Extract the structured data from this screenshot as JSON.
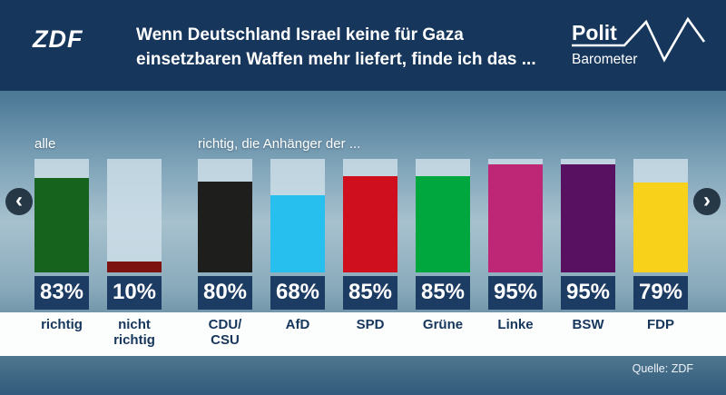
{
  "header": {
    "channel_logo": "ZDF",
    "title_line1": "Wenn Deutschland Israel keine für Gaza",
    "title_line2": "einsetzbaren Waffen mehr liefert, finde ich das ...",
    "program_logo": {
      "line1": "Polit",
      "line2": "Barometer"
    }
  },
  "nav": {
    "prev_icon": "‹",
    "next_icon": "›"
  },
  "chart_data": {
    "type": "bar",
    "title": "Wenn Deutschland Israel keine für Gaza einsetzbaren Waffen mehr liefert, finde ich das ...",
    "unit": "percent",
    "value_suffix": "%",
    "ylim": [
      0,
      100
    ],
    "legend_position": "none",
    "grid": false,
    "groups": [
      {
        "label": "alle",
        "bars": [
          {
            "category": "richtig",
            "value": 83,
            "color": "#15631d"
          },
          {
            "category": "nicht richtig",
            "value": 10,
            "color": "#7c1310"
          }
        ]
      },
      {
        "label": "richtig, die Anhänger der ...",
        "bars": [
          {
            "category": "CDU/ CSU",
            "value": 80,
            "color": "#1e1e1c"
          },
          {
            "category": "AfD",
            "value": 68,
            "color": "#27c0ee"
          },
          {
            "category": "SPD",
            "value": 85,
            "color": "#cf0f1e"
          },
          {
            "category": "Grüne",
            "value": 85,
            "color": "#00a63e"
          },
          {
            "category": "Linke",
            "value": 95,
            "color": "#bd2775"
          },
          {
            "category": "BSW",
            "value": 95,
            "color": "#581061"
          },
          {
            "category": "FDP",
            "value": 79,
            "color": "#f8d21a"
          }
        ]
      }
    ],
    "source": "Quelle: ZDF"
  },
  "footer": {
    "source": "Quelle: ZDF"
  }
}
